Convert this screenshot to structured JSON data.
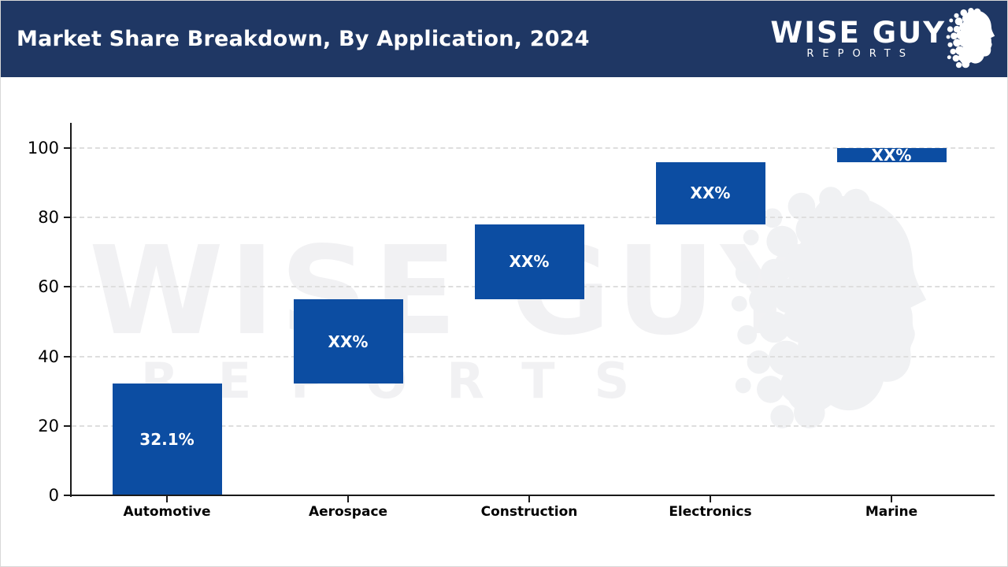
{
  "header": {
    "title": "Market Share Breakdown, By Application, 2024",
    "logo_line1": "WISE GUY",
    "logo_line2": "REPORTS",
    "bg_color": "#1f3764"
  },
  "watermark": {
    "line1": "WISE GUY",
    "line2": "REPORTS"
  },
  "chart_data": {
    "type": "bar",
    "subtype": "waterfall",
    "title": "Market Share Breakdown, By Application, 2024",
    "categories": [
      "Automotive",
      "Aerospace",
      "Construction",
      "Electronics",
      "Marine"
    ],
    "segments": [
      {
        "category": "Automotive",
        "start": 0,
        "end": 32.1,
        "label": "32.1%"
      },
      {
        "category": "Aerospace",
        "start": 32.1,
        "end": 56.5,
        "label": "XX%"
      },
      {
        "category": "Construction",
        "start": 56.5,
        "end": 78.0,
        "label": "XX%"
      },
      {
        "category": "Electronics",
        "start": 78.0,
        "end": 96.0,
        "label": "XX%"
      },
      {
        "category": "Marine",
        "start": 96.0,
        "end": 100.0,
        "label": "XX%"
      }
    ],
    "y_ticks": [
      0,
      20,
      40,
      60,
      80,
      100
    ],
    "ylim": [
      0,
      107
    ],
    "xlabel": "",
    "ylabel": "",
    "bar_color": "#0c4da2",
    "grid": "horizontal-dashed",
    "legend": "none"
  }
}
